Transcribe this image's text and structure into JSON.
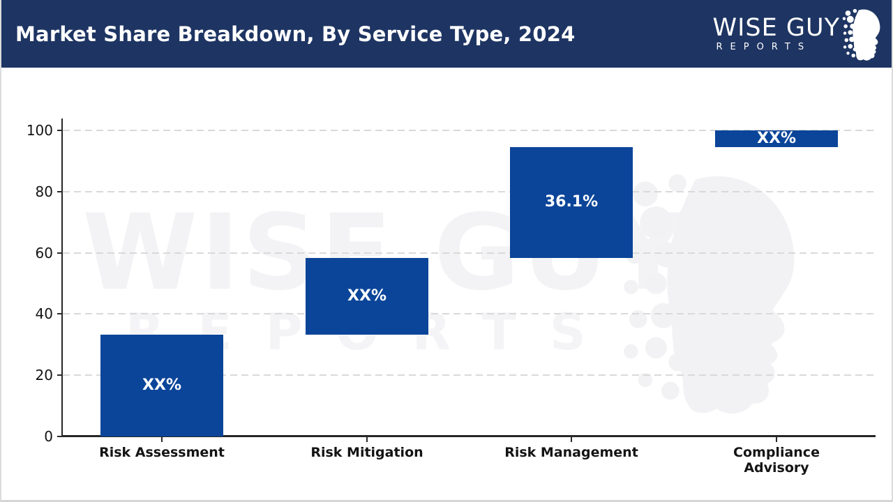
{
  "header": {
    "title": "Market Share Breakdown, By Service Type, 2024",
    "logo": {
      "primary": "WISE GUY",
      "secondary": "REPORTS"
    }
  },
  "watermark": {
    "primary": "WISE GUY",
    "secondary": "REPORTS"
  },
  "chart_data": {
    "type": "bar",
    "subtype": "waterfall",
    "title": "Market Share Breakdown, By Service Type, 2024",
    "categories": [
      "Risk Assessment",
      "Risk Mitigation",
      "Risk Management",
      "Compliance Advisory"
    ],
    "segments": [
      {
        "category": "Risk Assessment",
        "label": "XX%",
        "start": 0,
        "end": 33.2
      },
      {
        "category": "Risk Mitigation",
        "label": "XX%",
        "start": 33.2,
        "end": 58.4
      },
      {
        "category": "Risk Management",
        "label": "36.1%",
        "start": 58.4,
        "end": 94.5
      },
      {
        "category": "Compliance Advisory",
        "label": "XX%",
        "start": 94.5,
        "end": 100
      }
    ],
    "ylim": [
      0,
      100
    ],
    "yticks": [
      0,
      20,
      40,
      60,
      80,
      100
    ],
    "xlabel": "",
    "ylabel": "",
    "legend": "none",
    "grid": "horizontal-dashed",
    "bar_color": "#0b4599",
    "bar_label_color": "#ffffff"
  },
  "colors": {
    "header_bg": "#1e3563",
    "axis": "#262626",
    "gridline": "#d9d9d9",
    "watermark": "#f3f3f5"
  }
}
